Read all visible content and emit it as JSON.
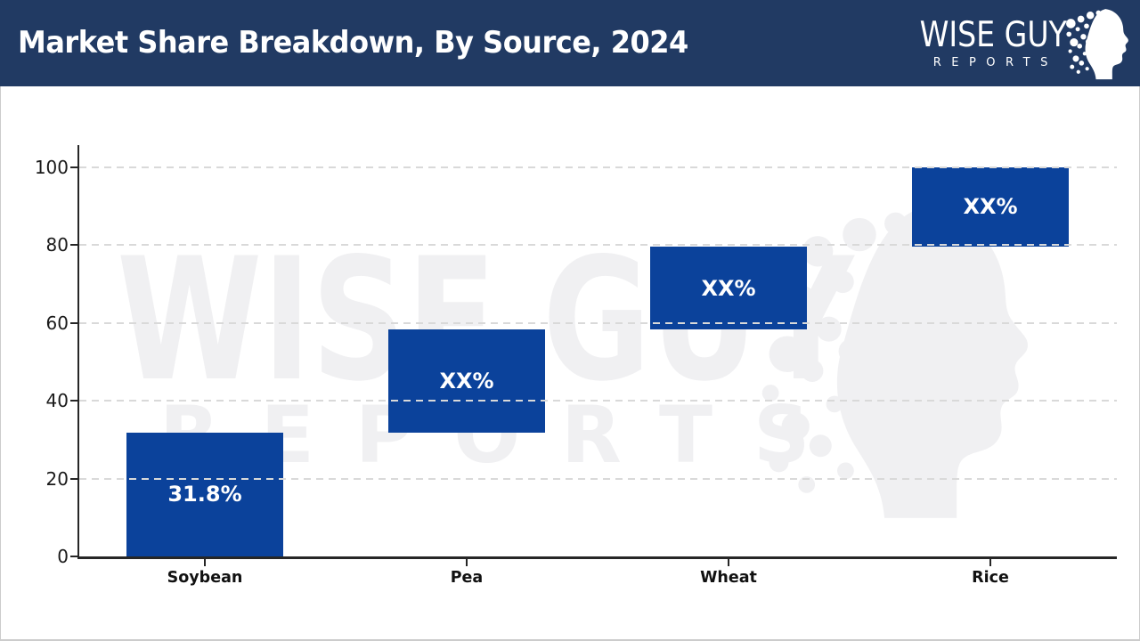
{
  "header": {
    "title": "Market Share Breakdown, By Source, 2024"
  },
  "logo": {
    "brand_top": "WISE GUY",
    "brand_bottom": "REPORTS"
  },
  "watermark": {
    "text_top": "WISE GUY",
    "text_bottom": "REPORTS"
  },
  "chart_data": {
    "type": "bar",
    "subtype": "floating-waterfall",
    "title": "Market Share Breakdown, By Source, 2024",
    "categories": [
      "Soybean",
      "Pea",
      "Wheat",
      "Rice"
    ],
    "segments": [
      {
        "category": "Soybean",
        "start": 0,
        "end": 31.8,
        "label": "31.8%"
      },
      {
        "category": "Pea",
        "start": 31.8,
        "end": 58.3,
        "label": "XX%"
      },
      {
        "category": "Wheat",
        "start": 58.3,
        "end": 79.5,
        "label": "XX%"
      },
      {
        "category": "Rice",
        "start": 79.5,
        "end": 100,
        "label": "XX%"
      }
    ],
    "yticks": [
      0,
      20,
      40,
      60,
      80,
      100
    ],
    "ylim": [
      0,
      106
    ],
    "xlabel": "",
    "ylabel": "",
    "grid": "horizontal dashed gridlines drawn over bars",
    "legend": null,
    "bar_color": "#0B429B",
    "bar_label_color": "#ffffff"
  },
  "colors": {
    "header_bg": "#213A63",
    "bar": "#0B429B",
    "axis": "#262626",
    "tick_text": "#1a1a1a",
    "grid": "#d9d9d9",
    "watermark": "#f0f0f2",
    "border": "#cccccc"
  }
}
